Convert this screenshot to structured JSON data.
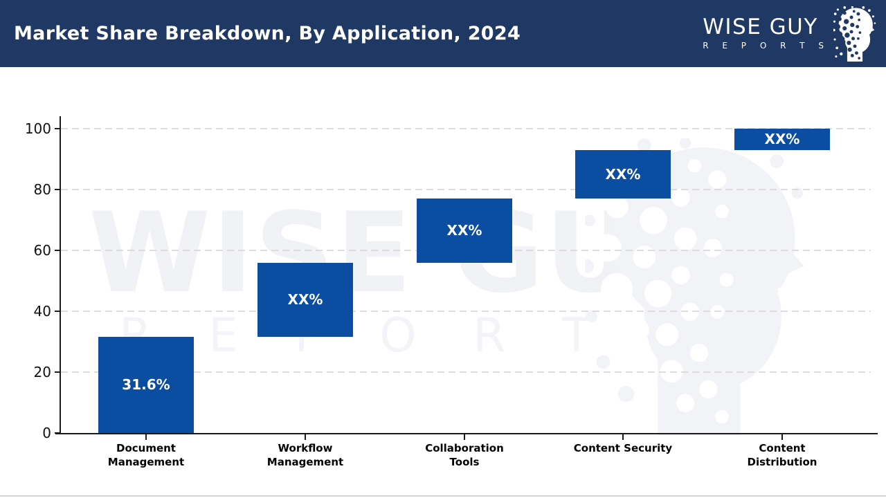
{
  "header": {
    "title": "Market Share Breakdown, By Application, 2024",
    "logo": {
      "line1": "WISE GUY",
      "line2": "R E P O R T S"
    }
  },
  "watermark": {
    "line1": "WISE GUY",
    "line2": "R E P O R T S"
  },
  "colors": {
    "header_bg": "#203864",
    "bar_blue": "#0b4da1",
    "grid_line": "#dcdcdc",
    "axis_line": "#1a1a1a",
    "tick_text": "#111111",
    "category_text": "#000000",
    "value_text": "#ffffff",
    "watermark_gray": "#f1f2f6"
  },
  "chart_data": {
    "type": "bar",
    "subtype": "waterfall",
    "title": "Market Share Breakdown, By Application, 2024",
    "xlabel": "",
    "ylabel": "",
    "ylim": [
      0,
      105
    ],
    "yticks": [
      0,
      20,
      40,
      60,
      80,
      100
    ],
    "grid": "horizontal-dashed",
    "legend": null,
    "categories": [
      "Document Management",
      "Workflow Management",
      "Collaboration Tools",
      "Content Security",
      "Content Distribution"
    ],
    "category_label_lines": [
      [
        "Document",
        "Management"
      ],
      [
        "Workflow",
        "Management"
      ],
      [
        "Collaboration",
        "Tools"
      ],
      [
        "Content Security"
      ],
      [
        "Content",
        "Distribution"
      ]
    ],
    "segments": [
      {
        "category": "Document Management",
        "start": 0,
        "end": 31.6,
        "label": "31.6%"
      },
      {
        "category": "Workflow Management",
        "start": 31.6,
        "end": 56.0,
        "label": "XX%"
      },
      {
        "category": "Collaboration Tools",
        "start": 56.0,
        "end": 77.0,
        "label": "XX%"
      },
      {
        "category": "Content Security",
        "start": 77.0,
        "end": 93.0,
        "label": "XX%"
      },
      {
        "category": "Content Distribution",
        "start": 93.0,
        "end": 100.0,
        "label": "XX%"
      }
    ]
  }
}
